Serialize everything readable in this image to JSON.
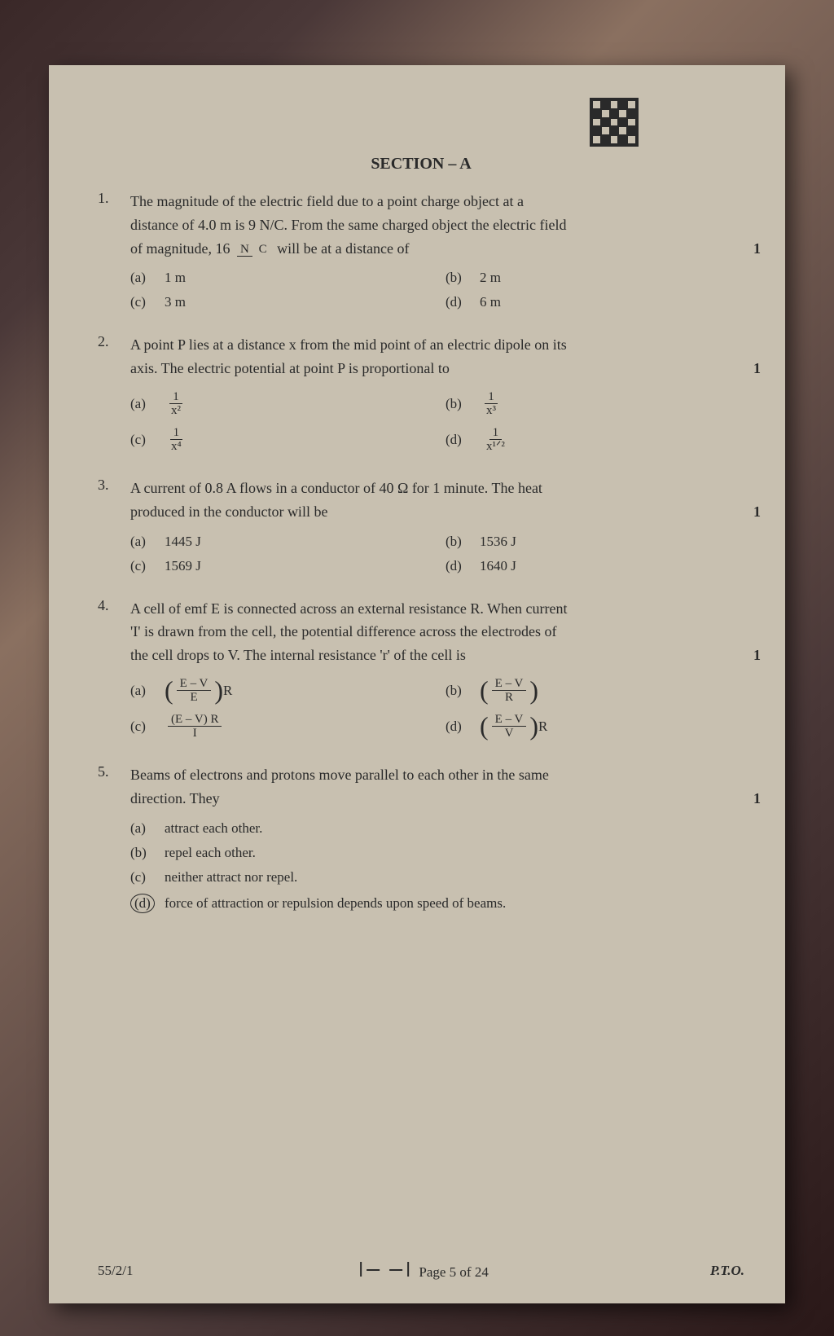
{
  "section_title": "SECTION – A",
  "questions": [
    {
      "num": "1.",
      "text_parts": {
        "line1": "The magnitude of the electric field due to a point charge object at a",
        "line2": "distance of 4.0 m is 9 N/C. From the same charged object the electric field",
        "line3_pre": "of magnitude, 16",
        "line3_frac_num": "N",
        "line3_frac_den": "C",
        "line3_post": " will be at a distance of"
      },
      "marks": "1",
      "options": [
        {
          "label": "(a)",
          "text": "1 m"
        },
        {
          "label": "(b)",
          "text": "2 m"
        },
        {
          "label": "(c)",
          "text": "3 m"
        },
        {
          "label": "(d)",
          "text": "6 m"
        }
      ]
    },
    {
      "num": "2.",
      "text_parts": {
        "line1": "A point P lies at a distance x from the mid point of an electric dipole on its",
        "line2": "axis. The electric potential at point P is proportional to"
      },
      "marks": "1",
      "options": [
        {
          "label": "(a)",
          "frac_num": "1",
          "frac_den": "x²"
        },
        {
          "label": "(b)",
          "frac_num": "1",
          "frac_den": "x³"
        },
        {
          "label": "(c)",
          "frac_num": "1",
          "frac_den": "x⁴"
        },
        {
          "label": "(d)",
          "frac_num": "1",
          "frac_den": "x¹ᐟ²"
        }
      ]
    },
    {
      "num": "3.",
      "text_parts": {
        "line1": "A current of 0.8 A flows in a conductor of 40 Ω for 1 minute. The heat",
        "line2": "produced in the conductor will be"
      },
      "marks": "1",
      "options": [
        {
          "label": "(a)",
          "text": "1445 J"
        },
        {
          "label": "(b)",
          "text": "1536 J"
        },
        {
          "label": "(c)",
          "text": "1569 J"
        },
        {
          "label": "(d)",
          "text": "1640 J"
        }
      ]
    },
    {
      "num": "4.",
      "text_parts": {
        "line1": "A cell of emf E is connected across an external resistance R. When current",
        "line2": "'I' is drawn from the cell, the potential difference across the electrodes of",
        "line3": "the cell drops to V. The internal resistance 'r' of the cell is"
      },
      "marks": "1",
      "options": [
        {
          "label": "(a)",
          "paren_frac_num": "E – V",
          "paren_frac_den": "E",
          "post": " R"
        },
        {
          "label": "(b)",
          "paren_frac_num": "E – V",
          "paren_frac_den": "R",
          "post": ""
        },
        {
          "label": "(c)",
          "frac_num": "(E – V) R",
          "frac_den": "I"
        },
        {
          "label": "(d)",
          "paren_frac_num": "E – V",
          "paren_frac_den": "V",
          "post": " R"
        }
      ]
    },
    {
      "num": "5.",
      "text_parts": {
        "line1": "Beams of electrons and protons move parallel to each other in the same",
        "line2": "direction. They"
      },
      "marks": "1",
      "options": [
        {
          "label": "(a)",
          "text": "attract each other."
        },
        {
          "label": "(b)",
          "text": "repel each other."
        },
        {
          "label": "(c)",
          "text": "neither attract nor repel."
        },
        {
          "label": "(d)",
          "text": "force of attraction or repulsion depends upon speed of beams."
        }
      ]
    }
  ],
  "footer": {
    "left": "55/2/1",
    "center": "Page 5 of 24",
    "right": "P.T.O."
  }
}
